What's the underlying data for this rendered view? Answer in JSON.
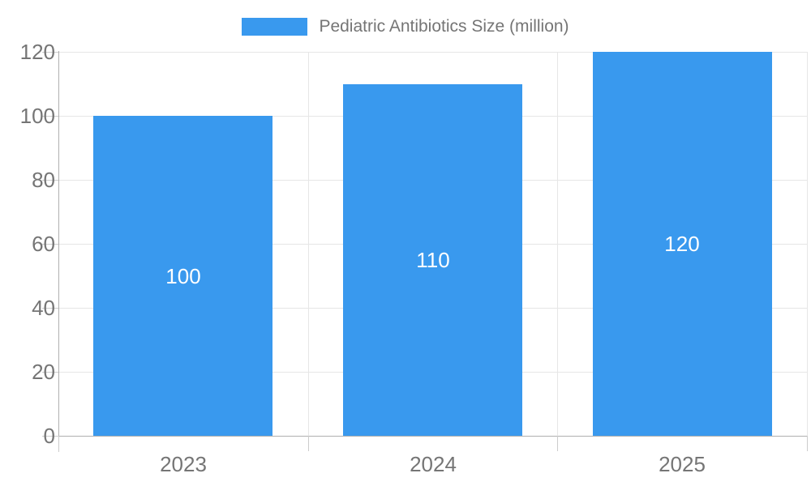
{
  "legend": {
    "label": "Pediatric Antibiotics Size (million)"
  },
  "chart_data": {
    "type": "bar",
    "title": "Pediatric Antibiotics Size (million)",
    "series": [
      {
        "name": "Pediatric Antibiotics Size (million)",
        "values": [
          100,
          110,
          120
        ]
      }
    ],
    "categories": [
      "2023",
      "2024",
      "2025"
    ],
    "values": [
      100,
      110,
      120
    ],
    "bar_labels": [
      "100",
      "110",
      "120"
    ],
    "yticks": [
      0,
      20,
      40,
      60,
      80,
      100,
      120
    ],
    "ytick_labels": [
      "0",
      "20",
      "40",
      "60",
      "80",
      "100",
      "120"
    ],
    "ylim": [
      0,
      120
    ],
    "xlabel": "",
    "ylabel": "",
    "grid": true,
    "legend_position": "top",
    "colors": {
      "bar": "#3999ee",
      "grid": "#e6e6e6",
      "axis": "#b0b0b0",
      "tick": "#cccccc",
      "text": "#757575",
      "bar_label": "#ffffff"
    }
  }
}
